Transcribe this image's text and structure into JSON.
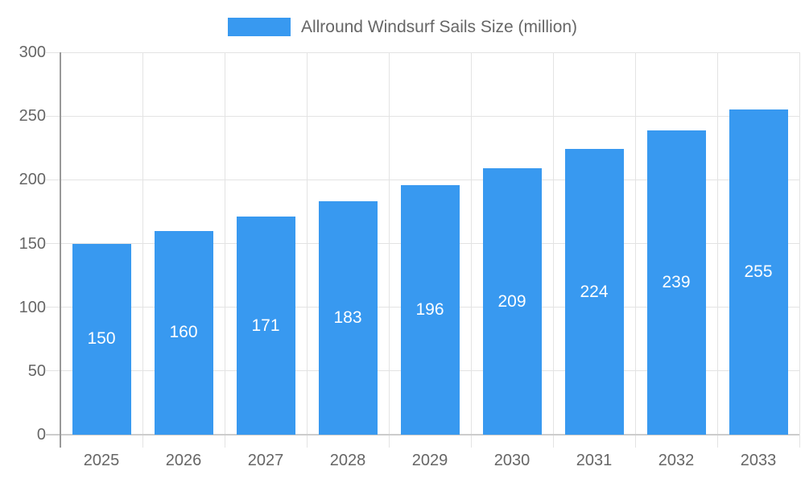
{
  "chart_data": {
    "type": "bar",
    "categories": [
      "2025",
      "2026",
      "2027",
      "2028",
      "2029",
      "2030",
      "2031",
      "2032",
      "2033"
    ],
    "series": [
      {
        "name": "Allround Windsurf Sails Size (million)",
        "values": [
          150,
          160,
          171,
          183,
          196,
          209,
          224,
          239,
          255
        ]
      }
    ],
    "value_labels_shown": true,
    "xlabel": "",
    "ylabel": "",
    "ylim": [
      0,
      300
    ],
    "yticks": [
      0,
      50,
      100,
      150,
      200,
      250,
      300
    ],
    "grid": true,
    "legend_position": "top",
    "colors": {
      "bar": "#3899F0",
      "bar_label": "#FFFFFF",
      "gridline": "#E3E3E3",
      "axis_line": "#999999",
      "axis_bottom_line": "#CCCCCC",
      "tick_text": "#666666",
      "legend_text": "#666666",
      "background": "#FFFFFF"
    }
  }
}
